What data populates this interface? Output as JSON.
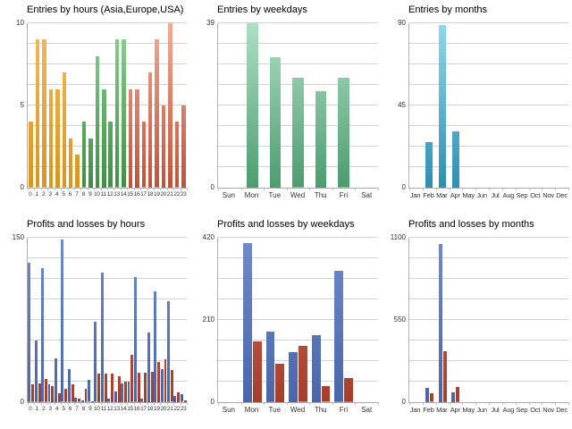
{
  "chart_data": [
    {
      "type": "bar",
      "title": "Entries by hours (Asia,Europe,USA)",
      "xlabel": "",
      "ylabel": "",
      "ylim": [
        0,
        10
      ],
      "yticks": [
        0,
        5,
        10
      ],
      "grid_intervals": 8,
      "bar_frac": 0.6,
      "legend": "none",
      "categories": [
        "0",
        "1",
        "2",
        "3",
        "4",
        "5",
        "6",
        "7",
        "8",
        "9",
        "10",
        "11",
        "12",
        "13",
        "14",
        "15",
        "16",
        "17",
        "18",
        "19",
        "20",
        "21",
        "22",
        "23"
      ],
      "series": [
        {
          "name": "entries",
          "values": [
            4,
            9,
            9,
            6,
            6,
            7,
            3,
            2,
            4,
            3,
            8,
            6,
            4,
            9,
            9,
            6,
            6,
            4,
            7,
            9,
            5,
            10,
            4,
            5
          ]
        }
      ],
      "color_groups": [
        {
          "label": "Asia",
          "from": 0,
          "to": 7,
          "light": "#F2BC60",
          "dark": "#D99420"
        },
        {
          "label": "Europe",
          "from": 8,
          "to": 14,
          "light": "#8FD293",
          "dark": "#3E8F44"
        },
        {
          "label": "USA",
          "from": 15,
          "to": 23,
          "light": "#F2AC96",
          "dark": "#C25237"
        }
      ]
    },
    {
      "type": "bar",
      "title": "Entries by weekdays",
      "xlabel": "",
      "ylabel": "",
      "ylim": [
        0,
        39
      ],
      "yticks": [
        0,
        39
      ],
      "grid_intervals": 8,
      "bar_frac": 0.5,
      "legend": "none",
      "categories": [
        "Sun",
        "Mon",
        "Tue",
        "Wed",
        "Thu",
        "Fri",
        "Sat"
      ],
      "series": [
        {
          "name": "entries",
          "values": [
            0,
            39,
            31,
            26,
            23,
            26,
            0
          ],
          "light": "#AEDFC5",
          "dark": "#4C9C6E"
        }
      ]
    },
    {
      "type": "bar",
      "title": "Entries by months",
      "xlabel": "",
      "ylabel": "",
      "ylim": [
        0,
        90
      ],
      "yticks": [
        0,
        45,
        90
      ],
      "grid_intervals": 8,
      "bar_frac": 0.55,
      "legend": "none",
      "categories": [
        "Jan",
        "Feb",
        "Mar",
        "Apr",
        "May",
        "Jun",
        "Jul",
        "Aug",
        "Sep",
        "Oct",
        "Nov",
        "Dec"
      ],
      "series": [
        {
          "name": "entries",
          "values": [
            0,
            25,
            89,
            31,
            0,
            0,
            0,
            0,
            0,
            0,
            0,
            0
          ],
          "light": "#8FD9E9",
          "dark": "#2E8FB2"
        }
      ]
    },
    {
      "type": "bar",
      "title": "Profits and losses by hours",
      "xlabel": "",
      "ylabel": "",
      "ylim": [
        0,
        150
      ],
      "yticks": [
        0,
        150
      ],
      "grid_intervals": 8,
      "bar_frac": 0.8,
      "legend": "none",
      "categories": [
        "0",
        "1",
        "2",
        "3",
        "4",
        "5",
        "6",
        "7",
        "8",
        "9",
        "10",
        "11",
        "12",
        "13",
        "14",
        "15",
        "16",
        "17",
        "18",
        "19",
        "20",
        "21",
        "22",
        "23"
      ],
      "series": [
        {
          "name": "profits",
          "values": [
            127,
            56,
            122,
            16,
            40,
            148,
            30,
            4,
            2,
            20,
            73,
            118,
            3,
            10,
            17,
            19,
            114,
            3,
            64,
            101,
            30,
            92,
            6,
            7
          ],
          "light": "#6E8BCD",
          "dark": "#4A66A8"
        },
        {
          "name": "losses",
          "values": [
            16,
            17,
            21,
            15,
            8,
            12,
            16,
            3,
            12,
            1,
            26,
            26,
            26,
            24,
            19,
            43,
            27,
            27,
            28,
            37,
            39,
            29,
            9,
            2
          ],
          "light": "#CE6450",
          "dark": "#A63E2B"
        }
      ]
    },
    {
      "type": "bar",
      "title": "Profits and losses by weekdays",
      "xlabel": "",
      "ylabel": "",
      "ylim": [
        0,
        420
      ],
      "yticks": [
        0,
        210,
        420
      ],
      "grid_intervals": 8,
      "bar_frac": 0.77,
      "legend": "none",
      "categories": [
        "Sun",
        "Mon",
        "Tue",
        "Wed",
        "Thu",
        "Fri",
        "Sat"
      ],
      "series": [
        {
          "name": "profits",
          "values": [
            0,
            407,
            180,
            128,
            172,
            335,
            0
          ],
          "light": "#6E8BCD",
          "dark": "#4A66A8"
        },
        {
          "name": "losses",
          "values": [
            0,
            156,
            99,
            143,
            40,
            61,
            0
          ],
          "light": "#CE6450",
          "dark": "#A63E2B"
        }
      ]
    },
    {
      "type": "bar",
      "title": "Profits and losses by months",
      "xlabel": "",
      "ylabel": "",
      "ylim": [
        0,
        1100
      ],
      "yticks": [
        0,
        550,
        1100
      ],
      "grid_intervals": 8,
      "bar_frac": 0.55,
      "legend": "none",
      "categories": [
        "Jan",
        "Feb",
        "Mar",
        "Apr",
        "May",
        "Jun",
        "Jul",
        "Aug",
        "Sep",
        "Oct",
        "Nov",
        "Dec"
      ],
      "series": [
        {
          "name": "profits",
          "values": [
            0,
            95,
            1060,
            67,
            0,
            0,
            0,
            0,
            0,
            0,
            0,
            0
          ],
          "light": "#6E8BCD",
          "dark": "#4A66A8"
        },
        {
          "name": "losses",
          "values": [
            0,
            57,
            340,
            100,
            0,
            0,
            0,
            0,
            0,
            0,
            0,
            0
          ],
          "light": "#CE6450",
          "dark": "#A63E2B"
        }
      ]
    }
  ],
  "palette": {
    "grid_color": "#d2d2d2",
    "axis_color": "#adadad",
    "text_color": "#333333",
    "background": "#ffffff"
  }
}
